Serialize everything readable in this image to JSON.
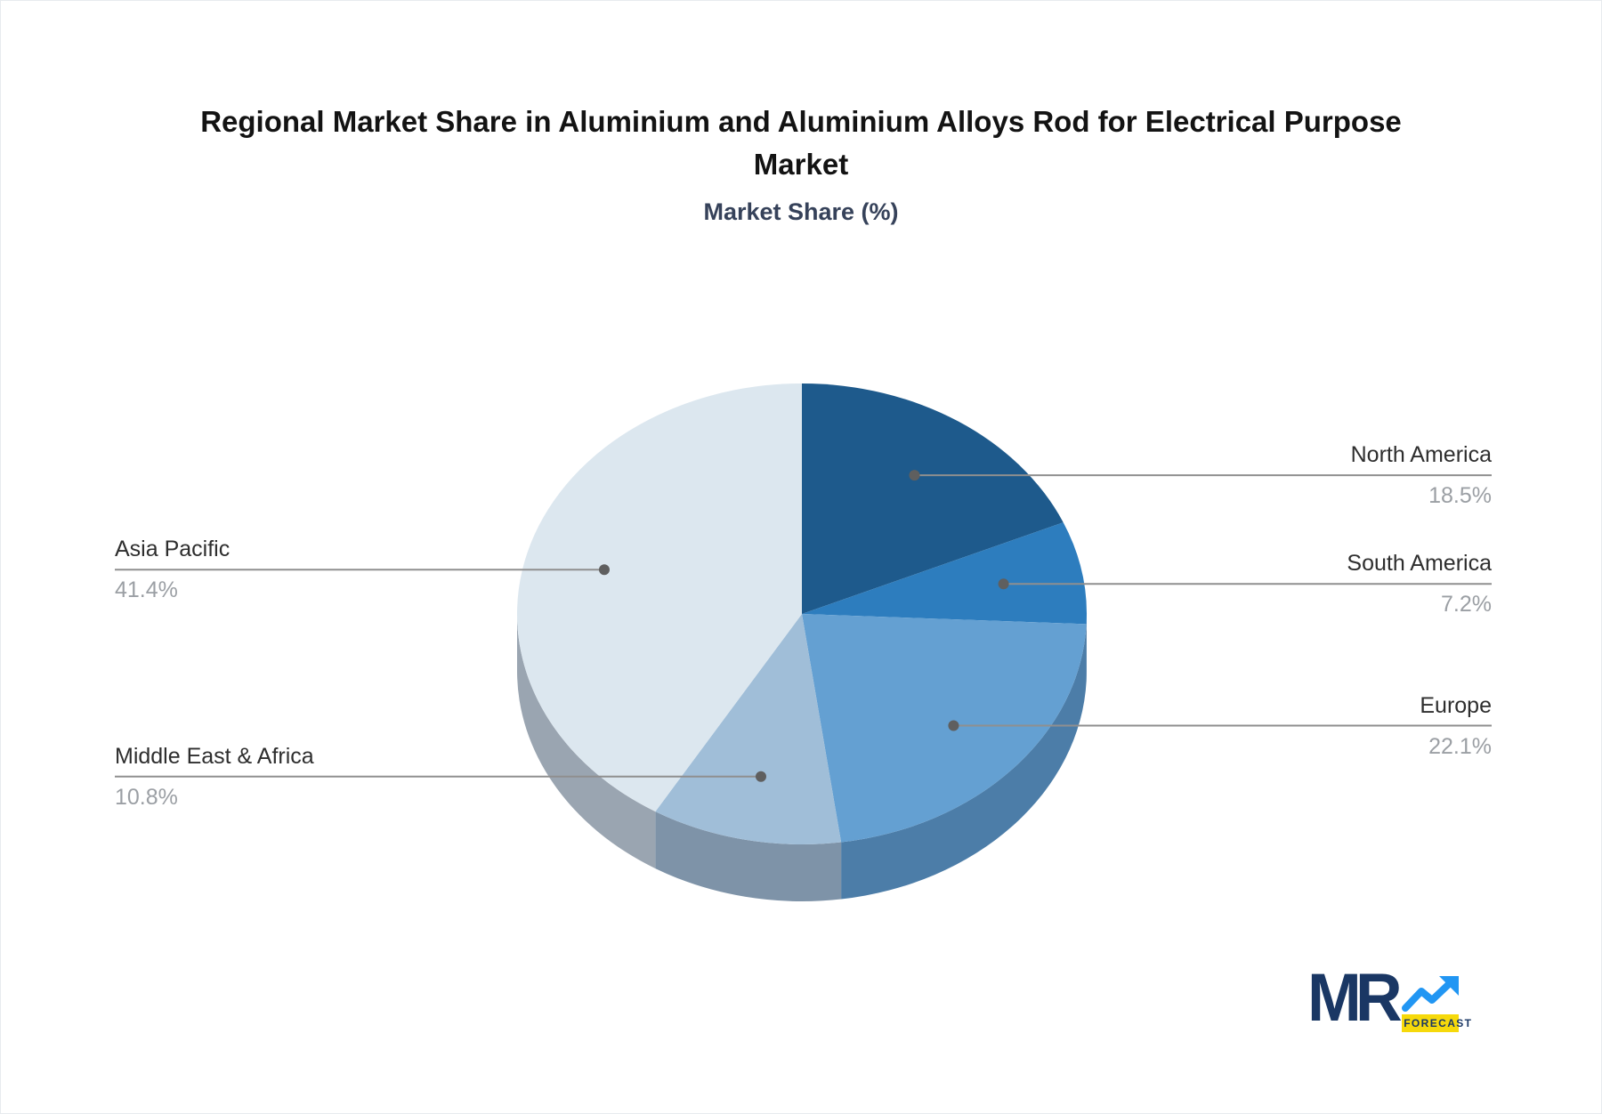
{
  "page": {
    "background": "#ffffff"
  },
  "chart_data": {
    "type": "pie",
    "title": "Regional Market Share in Aluminium and Aluminium Alloys Rod for Electrical Purpose Market",
    "subtitle": "Market Share (%)",
    "unit": "%",
    "effect": "3d",
    "start_angle_deg": 0,
    "direction": "clockwise",
    "legend_position": "none",
    "label_style": "callout-lines-with-dots",
    "slices": [
      {
        "label": "North America",
        "value": 18.5,
        "display": "18.5%",
        "color": "#1E5A8C",
        "side_color": "#2F5E88"
      },
      {
        "label": "South America",
        "value": 7.2,
        "display": "7.2%",
        "color": "#2D7DBE",
        "side_color": "#3E6F9D"
      },
      {
        "label": "Europe",
        "value": 22.1,
        "display": "22.1%",
        "color": "#64A0D2",
        "side_color": "#4C7DA8"
      },
      {
        "label": "Middle East & Africa",
        "value": 10.8,
        "display": "10.8%",
        "color": "#A0BED8",
        "side_color": "#7E93A8"
      },
      {
        "label": "Asia Pacific",
        "value": 41.4,
        "display": "41.4%",
        "color": "#DCE7EF",
        "side_color": "#9AA5B1"
      }
    ],
    "callout": {
      "line_color": "#8f8f8f",
      "dot_color": "#5f5f5f",
      "label_color": "#2e2e2e",
      "value_color": "#9b9fa4"
    }
  },
  "logo": {
    "text": "MR",
    "badge": "FORECAST",
    "navy": "#1A3764",
    "blue": "#2196F3",
    "yellow": "#F6D90B"
  }
}
